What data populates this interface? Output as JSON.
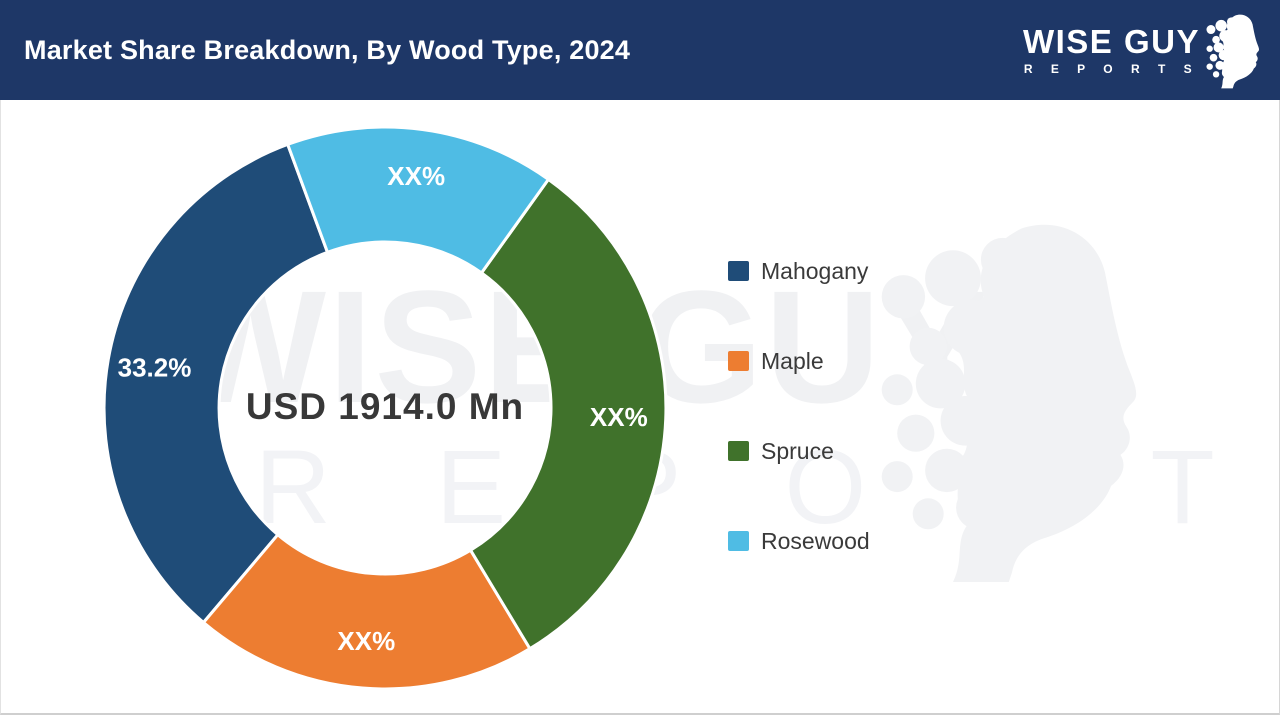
{
  "header": {
    "title": "Market Share Breakdown, By Wood Type, 2024",
    "background": "#1E3767",
    "brand": {
      "line1": "WISE GUY",
      "line2": "R E P O R T S"
    }
  },
  "watermark": {
    "line1": "WISE GUY",
    "line2": "R E P O R T S"
  },
  "chart_data": {
    "type": "pie",
    "subtype": "donut",
    "title": "Market Share Breakdown, By Wood Type, 2024",
    "center_label": "USD 1914.0 Mn",
    "legend_position": "right",
    "start_angle_deg": 110.25,
    "direction": "counterclockwise",
    "series": [
      {
        "name": "Mahogany",
        "label": "33.2%",
        "percent": 33.2,
        "color": "#1F4C78"
      },
      {
        "name": "Maple",
        "label": "XX%",
        "percent": 19.8,
        "color": "#ED7D31"
      },
      {
        "name": "Spruce",
        "label": "XX%",
        "percent": 31.5,
        "color": "#40722B"
      },
      {
        "name": "Rosewood",
        "label": "XX%",
        "percent": 15.5,
        "color": "#4FBCE4"
      }
    ]
  }
}
